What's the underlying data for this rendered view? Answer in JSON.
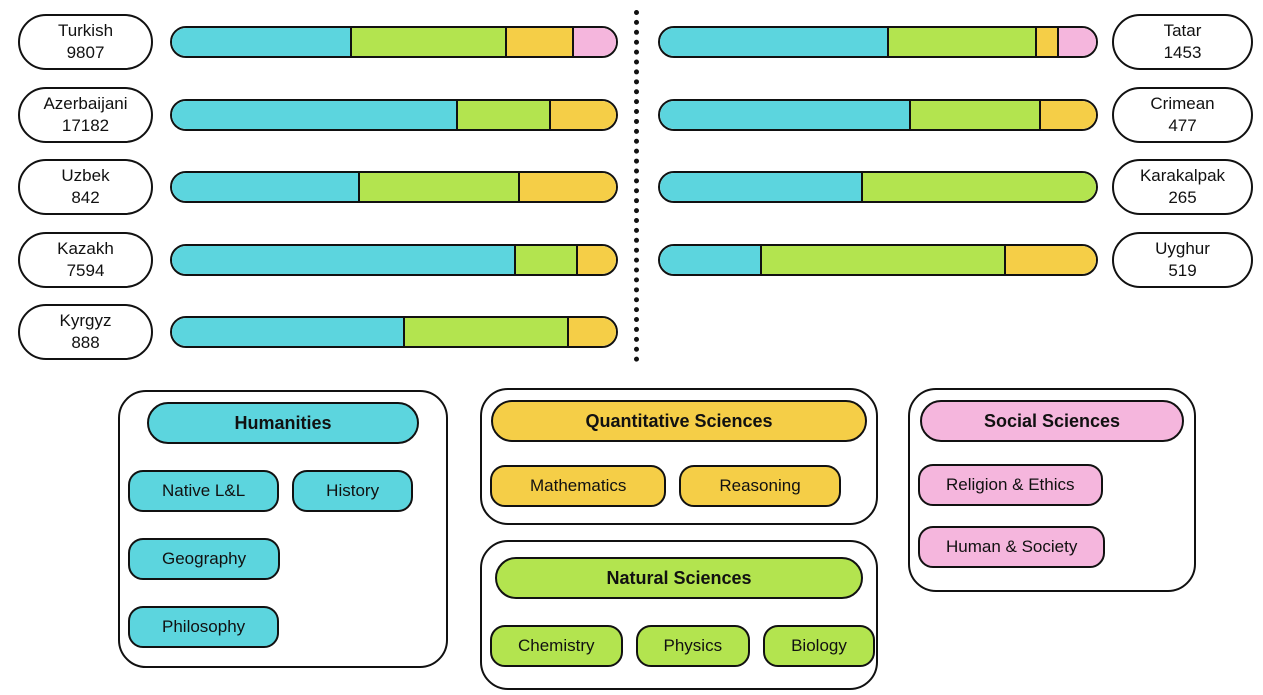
{
  "chart_data": {
    "type": "bar",
    "variant": "horizontal-stacked-percentage",
    "title": "",
    "legend_position": "bottom",
    "categories": [
      {
        "id": "humanities",
        "name": "Humanities",
        "color": "#5CD5DE",
        "item_rows": [
          [
            "Native L&L",
            "History"
          ],
          [
            "Geography"
          ],
          [
            "Philosophy"
          ]
        ]
      },
      {
        "id": "quantitative",
        "name": "Quantitative Sciences",
        "color": "#F5CE47",
        "item_rows": [
          [
            "Mathematics",
            "Reasoning"
          ]
        ]
      },
      {
        "id": "natural",
        "name": "Natural Sciences",
        "color": "#B3E44F",
        "item_rows": [
          [
            "Chemistry",
            "Physics",
            "Biology"
          ]
        ]
      },
      {
        "id": "social",
        "name": "Social Sciences",
        "color": "#F5B6DD",
        "item_rows": [
          [
            "Religion & Ethics"
          ],
          [
            "Human & Society"
          ]
        ]
      }
    ],
    "left_rows": [
      {
        "language": "Turkish",
        "count": "9807",
        "segments": [
          {
            "category": "humanities",
            "pct": 40
          },
          {
            "category": "natural",
            "pct": 35
          },
          {
            "category": "quantitative",
            "pct": 15
          },
          {
            "category": "social",
            "pct": 10
          }
        ]
      },
      {
        "language": "Azerbaijani",
        "count": "17182",
        "segments": [
          {
            "category": "humanities",
            "pct": 64
          },
          {
            "category": "natural",
            "pct": 21
          },
          {
            "category": "quantitative",
            "pct": 15
          }
        ]
      },
      {
        "language": "Uzbek",
        "count": "842",
        "segments": [
          {
            "category": "humanities",
            "pct": 42
          },
          {
            "category": "natural",
            "pct": 36
          },
          {
            "category": "quantitative",
            "pct": 22
          }
        ]
      },
      {
        "language": "Kazakh",
        "count": "7594",
        "segments": [
          {
            "category": "humanities",
            "pct": 77
          },
          {
            "category": "natural",
            "pct": 14
          },
          {
            "category": "quantitative",
            "pct": 9
          }
        ]
      },
      {
        "language": "Kyrgyz",
        "count": "888",
        "segments": [
          {
            "category": "humanities",
            "pct": 52
          },
          {
            "category": "natural",
            "pct": 37
          },
          {
            "category": "quantitative",
            "pct": 11
          }
        ]
      }
    ],
    "right_rows": [
      {
        "language": "Tatar",
        "count": "1453",
        "segments": [
          {
            "category": "humanities",
            "pct": 52
          },
          {
            "category": "natural",
            "pct": 34
          },
          {
            "category": "quantitative",
            "pct": 5
          },
          {
            "category": "social",
            "pct": 9
          }
        ]
      },
      {
        "language": "Crimean",
        "count": "477",
        "segments": [
          {
            "category": "humanities",
            "pct": 57
          },
          {
            "category": "natural",
            "pct": 30
          },
          {
            "category": "quantitative",
            "pct": 13
          }
        ]
      },
      {
        "language": "Karakalpak",
        "count": "265",
        "segments": [
          {
            "category": "humanities",
            "pct": 46
          },
          {
            "category": "natural",
            "pct": 54
          }
        ]
      },
      {
        "language": "Uyghur",
        "count": "519",
        "segments": [
          {
            "category": "humanities",
            "pct": 23
          },
          {
            "category": "natural",
            "pct": 56
          },
          {
            "category": "quantitative",
            "pct": 21
          }
        ]
      }
    ]
  },
  "colors": {
    "outline": "#111111",
    "background": "#ffffff",
    "humanities": "#5CD5DE",
    "quantitative": "#F5CE47",
    "natural": "#B3E44F",
    "social": "#F5B6DD"
  }
}
